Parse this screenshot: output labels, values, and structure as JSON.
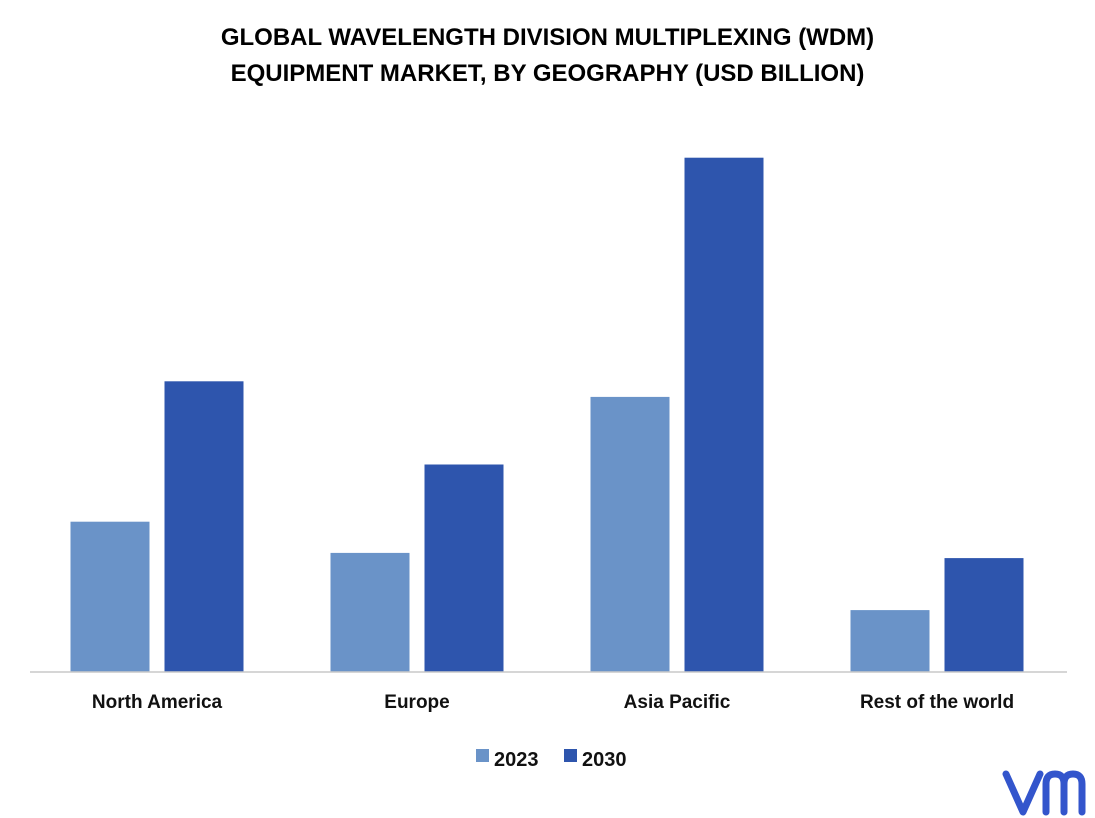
{
  "chart_data": {
    "type": "bar",
    "title_lines": [
      "GLOBAL WAVELENGTH DIVISION MULTIPLEXING (WDM)",
      "EQUIPMENT MARKET, BY GEOGRAPHY (USD BILLION)"
    ],
    "categories": [
      "North America",
      "Europe",
      "Asia Pacific",
      "Rest of the world"
    ],
    "series": [
      {
        "name": "2023",
        "values": [
          2.9,
          2.3,
          5.3,
          1.2
        ],
        "color": "#6a93c8"
      },
      {
        "name": "2030",
        "values": [
          5.6,
          4.0,
          9.9,
          2.2
        ],
        "color": "#2e55ad"
      }
    ],
    "ylim": [
      0,
      11
    ],
    "grid": false,
    "legend_position": "bottom",
    "logo_text": "vmr",
    "logo_color": "#3355cc"
  }
}
